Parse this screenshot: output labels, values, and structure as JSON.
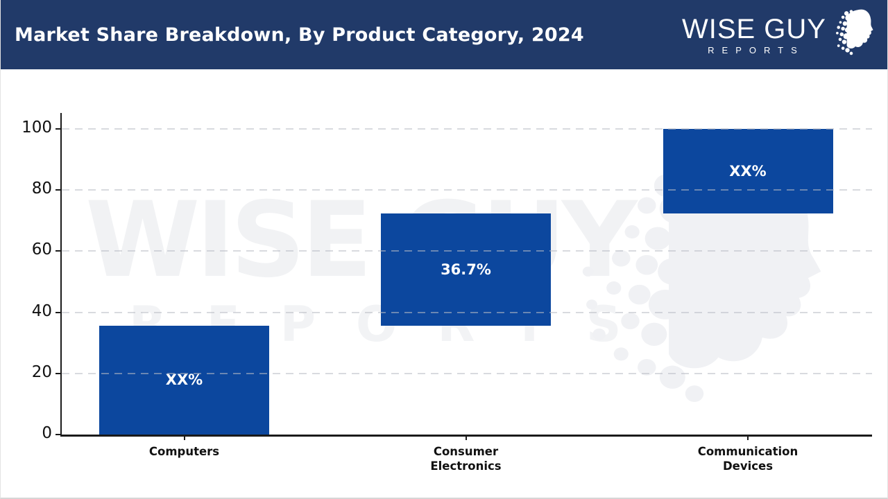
{
  "header": {
    "title": "Market Share Breakdown, By Product Category, 2024",
    "logo": {
      "line1": "WISE GUY",
      "line2": "REPORTS"
    }
  },
  "watermark": {
    "line1": "WISE GUY",
    "line2": "REPORTS"
  },
  "chart_data": {
    "type": "bar",
    "subtype": "waterfall",
    "title": "Market Share Breakdown, By Product Category, 2024",
    "categories": [
      "Computers",
      "Consumer\nElectronics",
      "Communication\nDevices"
    ],
    "series": [
      {
        "name": "Market Share",
        "segments": [
          {
            "category": "Computers",
            "start": 0,
            "end": 35.6,
            "label": "XX%"
          },
          {
            "category": "Consumer Electronics",
            "start": 35.6,
            "end": 72.3,
            "label": "36.7%"
          },
          {
            "category": "Communication Devices",
            "start": 72.3,
            "end": 100,
            "label": "XX%"
          }
        ]
      }
    ],
    "yticks": [
      0,
      20,
      40,
      60,
      80,
      100
    ],
    "ylim": [
      0,
      105
    ],
    "xlabel": "",
    "ylabel": "",
    "grid": "horizontal-dashed",
    "legend": "none",
    "colors": {
      "bar": "#0c479e",
      "bar_label": "#ffffff",
      "header_background": "#213a69",
      "axis": "#1a1a1a",
      "gridline": "#d9dbe0",
      "watermark": "#f1f2f4"
    }
  }
}
